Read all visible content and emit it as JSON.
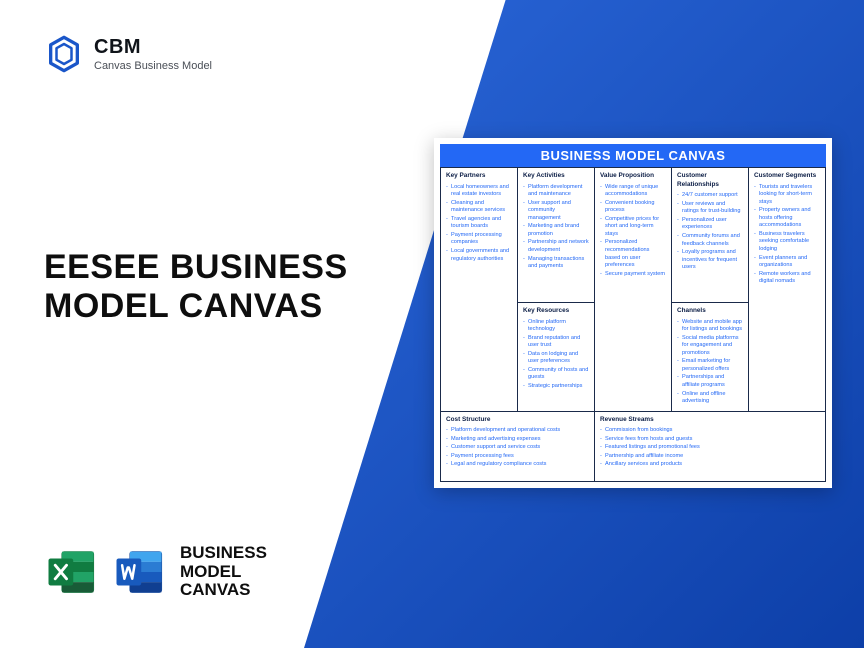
{
  "colors": {
    "primary_blue": "#2368f5",
    "deep_blue": "#0d3fa8",
    "text_dark": "#0e0e0e",
    "cell_text": "#2368f5",
    "cell_heading": "#0b1d45",
    "border": "#1a2a4a"
  },
  "logo": {
    "brand": "CBM",
    "tag": "Canvas Business Model"
  },
  "headline": "EESEE BUSINESS MODEL CANVAS",
  "footer_label": "BUSINESS\nMODEL\nCANVAS",
  "canvas": {
    "title": "BUSINESS MODEL CANVAS",
    "key_partners": {
      "title": "Key Partners",
      "items": [
        "Local homeowners and real estate investors",
        "Cleaning and maintenance services",
        "Travel agencies and tourism boards",
        "Payment processing companies",
        "Local governments and regulatory authorities"
      ]
    },
    "key_activities": {
      "title": "Key Activities",
      "items": [
        "Platform development and maintenance",
        "User support and community management",
        "Marketing and brand promotion",
        "Partnership and network development",
        "Managing transactions and payments"
      ]
    },
    "key_resources": {
      "title": "Key Resources",
      "items": [
        "Online platform technology",
        "Brand reputation and user trust",
        "Data on lodging and user preferences",
        "Community of hosts and guests",
        "Strategic partnerships"
      ]
    },
    "value_proposition": {
      "title": "Value Proposition",
      "items": [
        "Wide range of unique accommodations",
        "Convenient booking process",
        "Competitive prices for short and long-term stays",
        "Personalized recommendations based on user preferences",
        "Secure payment system"
      ]
    },
    "customer_relationships": {
      "title": "Customer Relationships",
      "items": [
        "24/7 customer support",
        "User reviews and ratings for trust-building",
        "Personalized user experiences",
        "Community forums and feedback channels",
        "Loyalty programs and incentives for frequent users"
      ]
    },
    "channels": {
      "title": "Channels",
      "items": [
        "Website and mobile app for listings and bookings",
        "Social media platforms for engagement and promotions",
        "Email marketing for personalized offers",
        "Partnerships and affiliate programs",
        "Online and offline advertising"
      ]
    },
    "customer_segments": {
      "title": "Customer Segments",
      "items": [
        "Tourists and travelers looking for short-term stays",
        "Property owners and hosts offering accommodations",
        "Business travelers seeking comfortable lodging",
        "Event planners and organizations",
        "Remote workers and digital nomads"
      ]
    },
    "cost_structure": {
      "title": "Cost Structure",
      "items": [
        "Platform development and operational costs",
        "Marketing and advertising expenses",
        "Customer support and service costs",
        "Payment processing fees",
        "Legal and regulatory compliance costs"
      ]
    },
    "revenue_streams": {
      "title": "Revenue Streams",
      "items": [
        "Commission from bookings",
        "Service fees from hosts and guests",
        "Featured listings and promotional fees",
        "Partnership and affiliate income",
        "Ancillary services and products"
      ]
    }
  }
}
